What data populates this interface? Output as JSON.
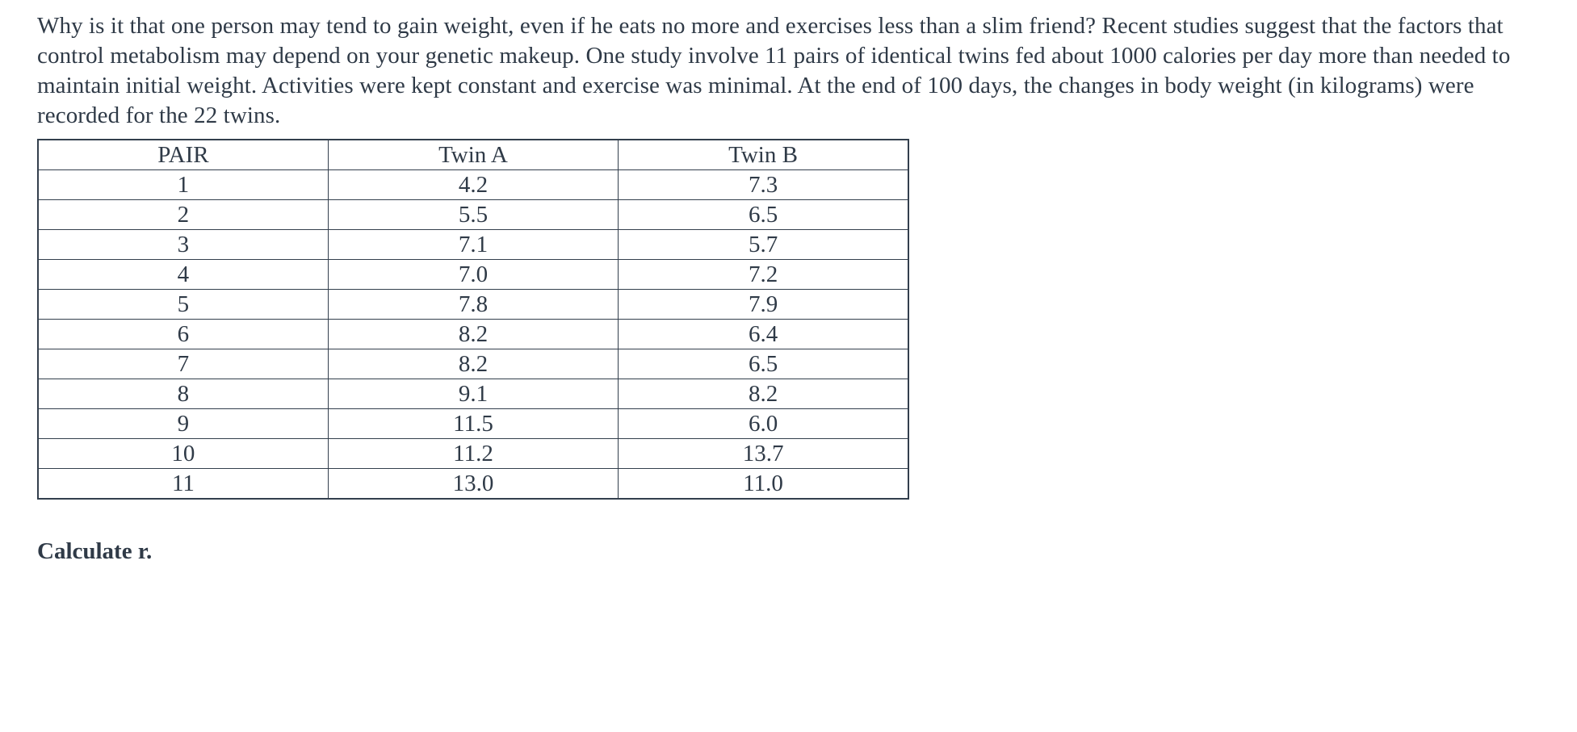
{
  "colors": {
    "text": "#2f3a47",
    "table_border": "#333f4d",
    "background": "#ffffff"
  },
  "paragraph": "Why is it that one person may tend to gain weight, even if he eats no more and exercises less than a slim friend? Recent studies suggest that the factors that control metabolism may depend on your genetic makeup. One study involve 11 pairs of identical twins fed about 1000 calories per day more than needed to maintain initial weight. Activities were kept constant and exercise was minimal. At the end of 100 days, the changes in body weight (in kilograms) were recorded for the 22 twins.",
  "table": {
    "headers": [
      "PAIR",
      "Twin A",
      "Twin B"
    ],
    "rows": [
      [
        "1",
        "4.2",
        "7.3"
      ],
      [
        "2",
        "5.5",
        "6.5"
      ],
      [
        "3",
        "7.1",
        "5.7"
      ],
      [
        "4",
        "7.0",
        "7.2"
      ],
      [
        "5",
        "7.8",
        "7.9"
      ],
      [
        "6",
        "8.2",
        "6.4"
      ],
      [
        "7",
        "8.2",
        "6.5"
      ],
      [
        "8",
        "9.1",
        "8.2"
      ],
      [
        "9",
        "11.5",
        "6.0"
      ],
      [
        "10",
        "11.2",
        "13.7"
      ],
      [
        "11",
        "13.0",
        "11.0"
      ]
    ]
  },
  "footer": {
    "prompt": "Calculate r."
  }
}
